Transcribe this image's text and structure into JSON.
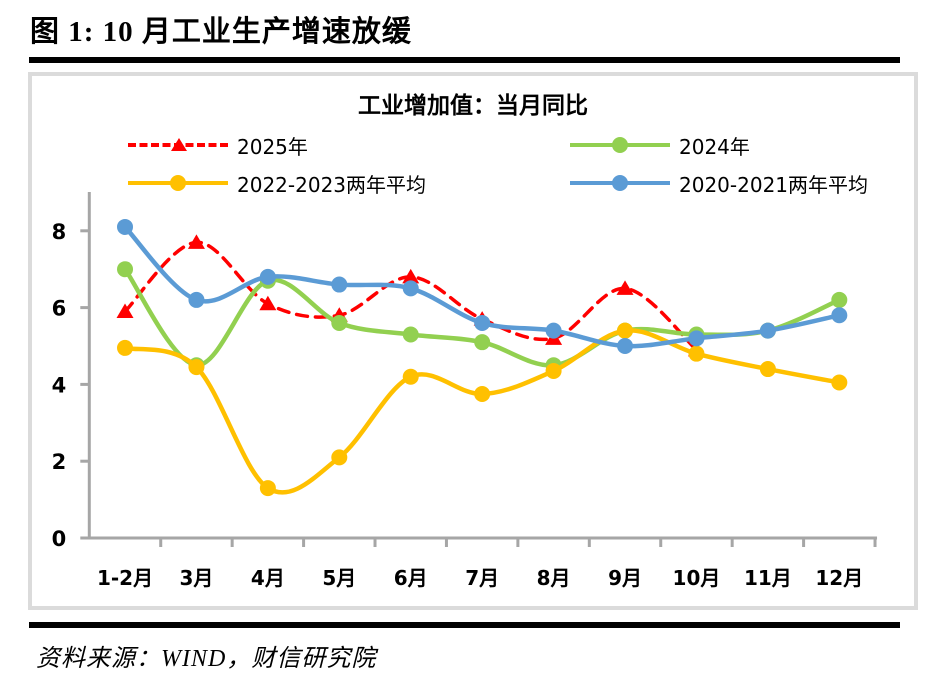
{
  "page": {
    "title": "图 1:  10 月工业生产增速放缓",
    "source": "资料来源：WIND，财信研究院"
  },
  "chart_data": {
    "type": "line",
    "title": "工业增加值：当月同比",
    "categories": [
      "1-2月",
      "3月",
      "4月",
      "5月",
      "6月",
      "7月",
      "8月",
      "9月",
      "10月",
      "11月",
      "12月"
    ],
    "series": [
      {
        "name": "2025年",
        "color": "#FF0000",
        "line_style": "dashed",
        "marker": "triangle",
        "values": [
          5.9,
          7.7,
          6.1,
          5.8,
          6.8,
          5.7,
          5.2,
          6.5,
          4.9,
          null,
          null
        ]
      },
      {
        "name": "2024年",
        "color": "#92D050",
        "line_style": "solid",
        "marker": "circle",
        "values": [
          7.0,
          4.5,
          6.7,
          5.6,
          5.3,
          5.1,
          4.5,
          5.4,
          5.3,
          5.4,
          6.2
        ]
      },
      {
        "name": "2022-2023两年平均",
        "color": "#FFC000",
        "line_style": "solid",
        "marker": "circle",
        "values": [
          4.95,
          4.45,
          1.3,
          2.1,
          4.2,
          3.75,
          4.35,
          5.4,
          4.8,
          4.4,
          4.05
        ]
      },
      {
        "name": "2020-2021两年平均",
        "color": "#5B9BD5",
        "line_style": "solid",
        "marker": "circle",
        "values": [
          8.1,
          6.2,
          6.8,
          6.6,
          6.5,
          5.6,
          5.4,
          5.0,
          5.2,
          5.4,
          5.8
        ]
      }
    ],
    "ylim": [
      0,
      8
    ],
    "yticks": [
      0,
      2,
      4,
      6,
      8
    ],
    "xlabel": "",
    "ylabel": "",
    "grid": false,
    "legend_position": "top",
    "axis_color": "#A6A6A6",
    "tick_label_color": "#000000"
  }
}
